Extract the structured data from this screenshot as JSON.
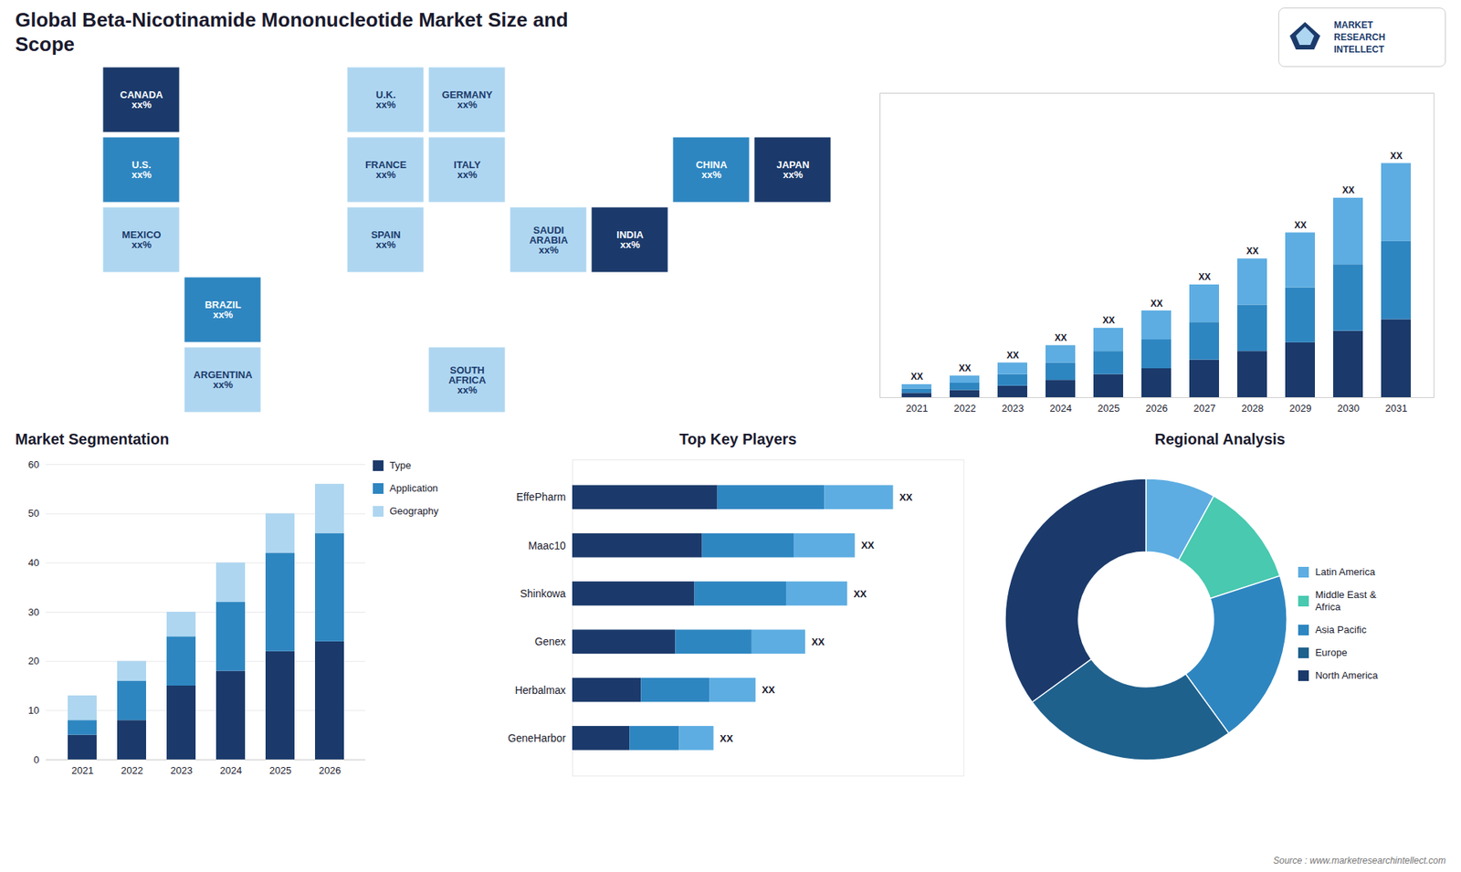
{
  "chart_data": [
    {
      "type": "map",
      "title": "Global Beta-Nicotinamide Mononucleotide Market Size and\nScope",
      "categories": [
        "CANADA\nxx%",
        "U.S.\nxx%",
        "MEXICO\nxx%",
        "BRAZIL\nxx%",
        "ARGENTINA\nxx%",
        "U.K.\nxx%",
        "FRANCE\nxx%",
        "SPAIN\nxx%",
        "GERMANY\nxx%",
        "ITALY\nxx%",
        "SAUDI\nARABIA\nxx%",
        "SOUTH\nAFRICA\nxx%",
        "INDIA\nxx%",
        "CHINA\nxx%",
        "JAPAN\nxx%"
      ],
      "colors": [
        "#1b3a6b",
        "#2e86c1",
        "#aed6f1",
        "#2e86c1",
        "#aed6f1",
        "#aed6f1",
        "#aed6f1",
        "#aed6f1",
        "#aed6f1",
        "#aed6f1",
        "#aed6f1",
        "#aed6f1",
        "#1b3a6b",
        "#2e86c1",
        "#1b3a6b"
      ],
      "tick_labels": false,
      "annotations": [
        "MARKET",
        "RESEARCH",
        "INTELLECT"
      ]
    },
    {
      "type": "bar",
      "stacked": true,
      "categories": [
        "2021",
        "2022",
        "2023",
        "2024",
        "2025",
        "2026",
        "2027",
        "2028",
        "2029",
        "2030",
        "2031"
      ],
      "series": [
        {
          "color": "#1b3a6b",
          "values": [
            1.5,
            2.5,
            4,
            6,
            8,
            10,
            13,
            16,
            19,
            23,
            27
          ]
        },
        {
          "color": "#2e86c1",
          "values": [
            1.5,
            2.5,
            4,
            6,
            8,
            10,
            13,
            16,
            19,
            23,
            27
          ]
        },
        {
          "color": "#5dade2",
          "values": [
            1.5,
            2.5,
            4,
            6,
            8,
            10,
            13,
            16,
            19,
            23,
            27
          ]
        }
      ],
      "ylim": [
        0,
        105.3
      ],
      "tick_labels": "x",
      "data_labels": true,
      "value_labels": [
        "XX",
        "XX",
        "XX",
        "XX",
        "XX",
        "XX",
        "XX",
        "XX",
        "XX",
        "XX",
        "XX"
      ]
    },
    {
      "type": "bar",
      "title": "Market Segmentation",
      "stacked": true,
      "categories": [
        "2021",
        "2022",
        "2023",
        "2024",
        "2025",
        "2026"
      ],
      "series": [
        {
          "name": "Type",
          "color": "#1b3a6b",
          "values": [
            5,
            8,
            15,
            18,
            22,
            24
          ]
        },
        {
          "name": "Application",
          "color": "#2e86c1",
          "values": [
            3,
            8,
            10,
            14,
            20,
            22
          ]
        },
        {
          "name": "Geography",
          "color": "#aed6f1",
          "values": [
            5,
            4,
            5,
            8,
            8,
            10
          ]
        }
      ],
      "ylim": [
        0,
        60
      ],
      "yticks": [
        0,
        10,
        20,
        30,
        40,
        50,
        60
      ],
      "grid": true,
      "legend": "right"
    },
    {
      "type": "bar",
      "title": "Top Key Players",
      "stacked": true,
      "orientation": "horizontal",
      "categories": [
        "EffePharm",
        "Maac10",
        "Shinkowa",
        "Genex",
        "Herbalmax",
        "GeneHarbor"
      ],
      "series": [
        {
          "color": "#1b3a6b",
          "values": [
            38,
            34,
            32,
            27,
            18,
            15
          ]
        },
        {
          "color": "#2e86c1",
          "values": [
            28,
            24,
            24,
            20,
            18,
            13
          ]
        },
        {
          "color": "#5dade2",
          "values": [
            18,
            16,
            16,
            14,
            12,
            9
          ]
        }
      ],
      "xlim": [
        0,
        102.48
      ],
      "tick_labels": "y",
      "data_labels": true,
      "value_labels": [
        "XX",
        "XX",
        "XX",
        "XX",
        "XX",
        "XX"
      ]
    },
    {
      "type": "pie",
      "title": "Regional Analysis",
      "categories": [
        "Latin America",
        "Middle East &\nAfrica",
        "Asia Pacific",
        "Europe",
        "North America"
      ],
      "values": [
        8,
        12,
        20,
        25,
        35
      ],
      "colors": [
        "#5dade2",
        "#48c9b0",
        "#2e86c1",
        "#1f618d",
        "#1b3a6b"
      ],
      "legend": "right",
      "annotations": [
        "Source : www.marketresearchintellect.com"
      ]
    }
  ]
}
